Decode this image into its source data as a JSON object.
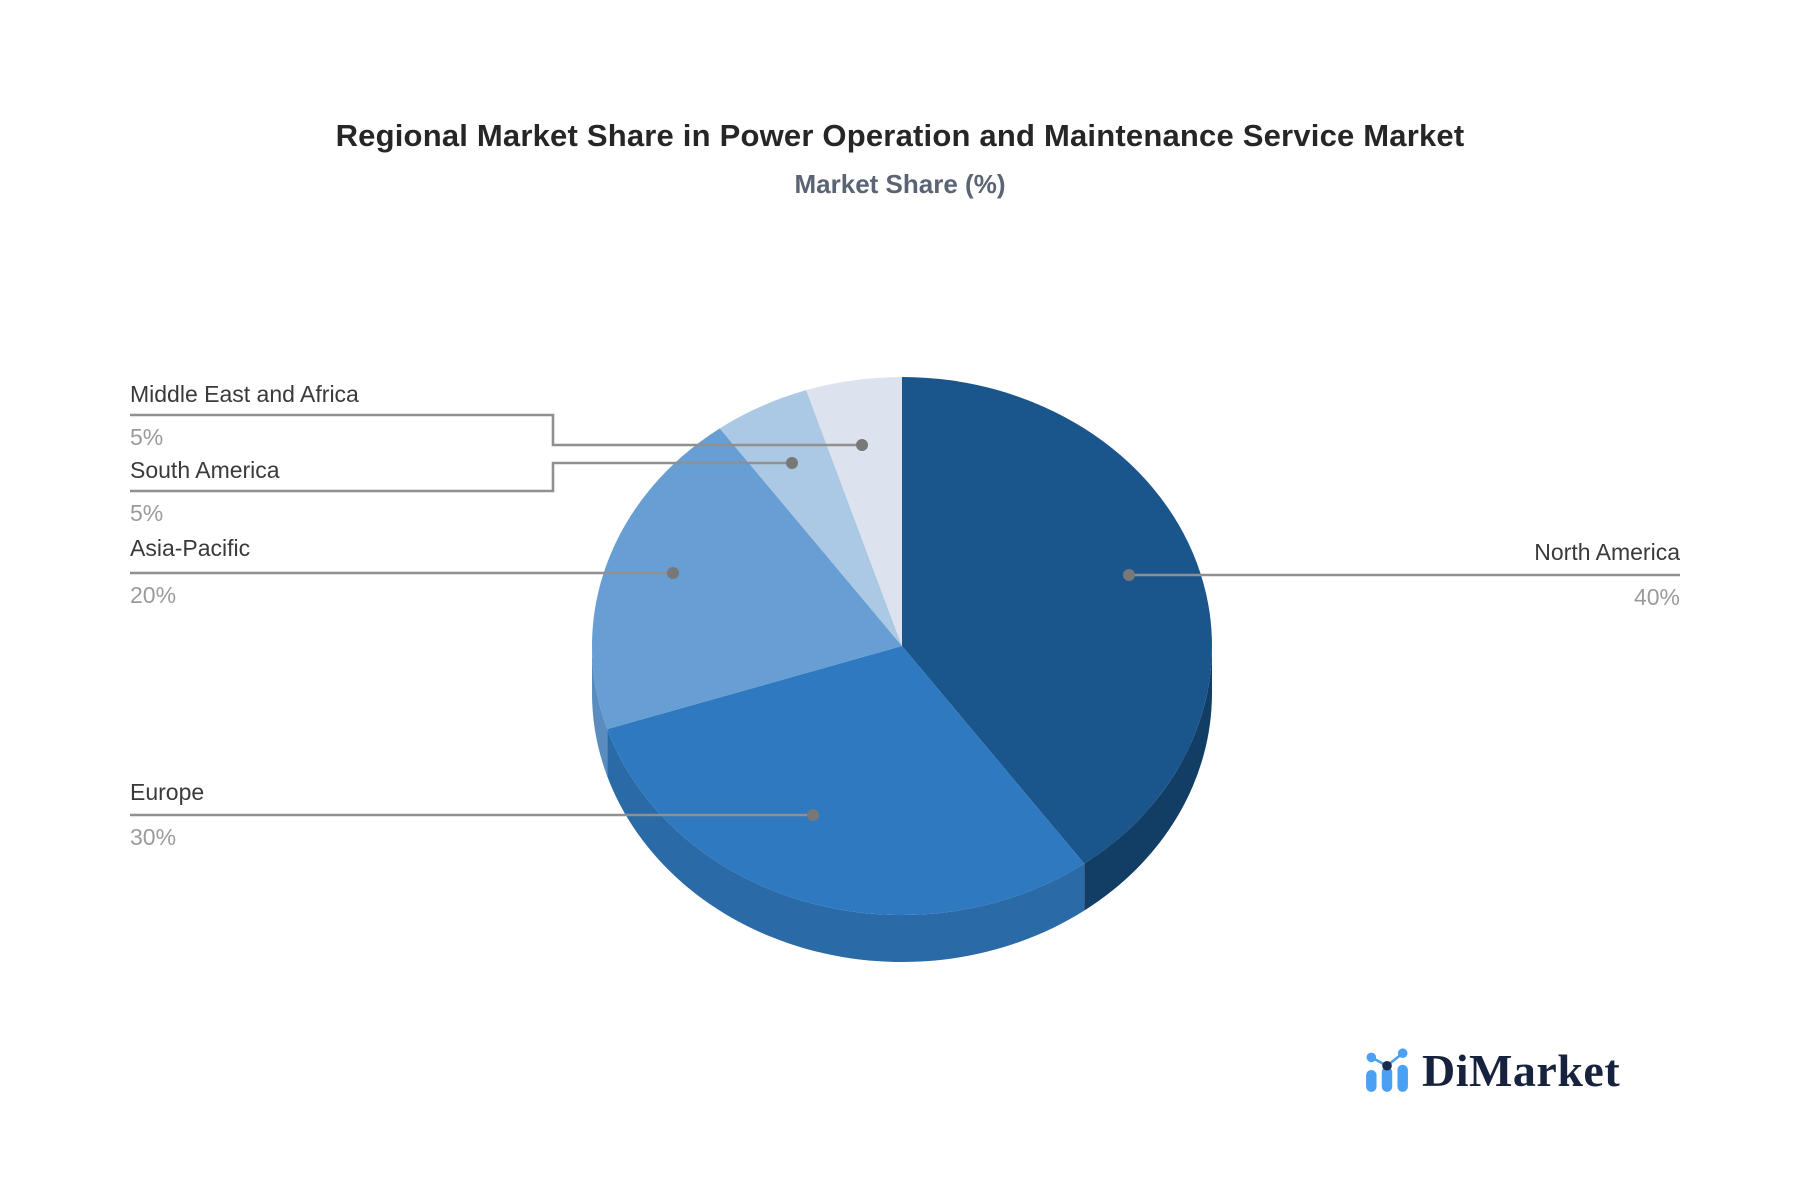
{
  "header": {
    "title": "Regional Market Share in Power Operation and Maintenance Service Market",
    "subtitle": "Market Share (%)"
  },
  "chart_data": {
    "type": "pie",
    "style": "3d",
    "title": "Regional Market Share in Power Operation and Maintenance Service Market",
    "subtitle": "Market Share (%)",
    "unit": "%",
    "start_angle_deg": 0,
    "direction": "clockwise",
    "legend_position": "callout-labels",
    "slices": [
      {
        "name": "North America",
        "value": 40,
        "label": "40%",
        "color": "#1a568c",
        "side_color": "#123e66"
      },
      {
        "name": "Europe",
        "value": 30,
        "label": "30%",
        "color": "#2e79c0",
        "side_color": "#2a6aa6"
      },
      {
        "name": "Asia-Pacific",
        "value": 20,
        "label": "20%",
        "color": "#679ed3",
        "side_color": "#5a8cbd"
      },
      {
        "name": "South America",
        "value": 5,
        "label": "5%",
        "color": "#abc8e4",
        "side_color": "#93b4d4"
      },
      {
        "name": "Middle East and Africa",
        "value": 5,
        "label": "5%",
        "color": "#dce3ee",
        "side_color": "#c3cdde"
      }
    ],
    "connector_color": "#909090",
    "connector_dot_color": "#787878",
    "label_color": "#3a3a3a",
    "value_color": "#9b9b9b"
  },
  "brand": {
    "name": "DiMarket",
    "icon": "bar-chart-logo-icon",
    "icon_color": "#4aa0f2",
    "icon_accent_color": "#1b2b4d",
    "text_color": "#17233e"
  }
}
